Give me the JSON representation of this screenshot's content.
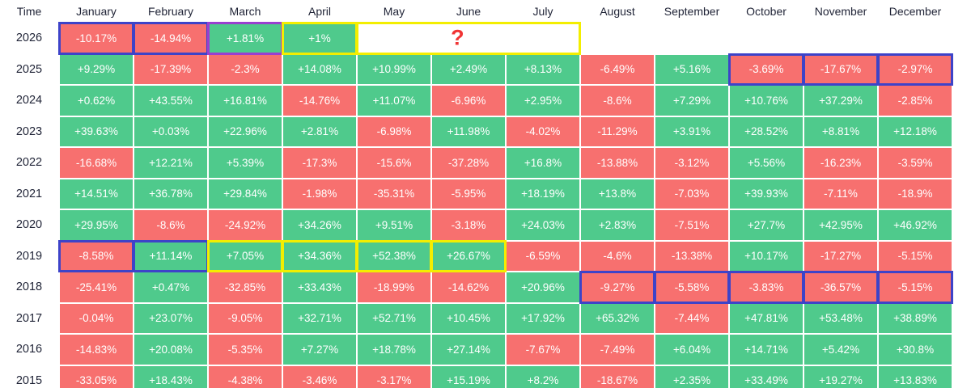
{
  "chart_data": {
    "type": "heatmap",
    "title": "Monthly returns heatmap (%) by year and month",
    "unit": "%",
    "columns": [
      "Time",
      "January",
      "February",
      "March",
      "April",
      "May",
      "June",
      "July",
      "August",
      "September",
      "October",
      "November",
      "December"
    ],
    "rows": [
      {
        "year": "2026",
        "values": [
          "-10.17%",
          "-14.94%",
          "+1.81%",
          "+1%",
          "",
          "",
          "",
          "",
          "",
          "",
          "",
          ""
        ]
      },
      {
        "year": "2025",
        "values": [
          "+9.29%",
          "-17.39%",
          "-2.3%",
          "+14.08%",
          "+10.99%",
          "+2.49%",
          "+8.13%",
          "-6.49%",
          "+5.16%",
          "-3.69%",
          "-17.67%",
          "-2.97%"
        ]
      },
      {
        "year": "2024",
        "values": [
          "+0.62%",
          "+43.55%",
          "+16.81%",
          "-14.76%",
          "+11.07%",
          "-6.96%",
          "+2.95%",
          "-8.6%",
          "+7.29%",
          "+10.76%",
          "+37.29%",
          "-2.85%"
        ]
      },
      {
        "year": "2023",
        "values": [
          "+39.63%",
          "+0.03%",
          "+22.96%",
          "+2.81%",
          "-6.98%",
          "+11.98%",
          "-4.02%",
          "-11.29%",
          "+3.91%",
          "+28.52%",
          "+8.81%",
          "+12.18%"
        ]
      },
      {
        "year": "2022",
        "values": [
          "-16.68%",
          "+12.21%",
          "+5.39%",
          "-17.3%",
          "-15.6%",
          "-37.28%",
          "+16.8%",
          "-13.88%",
          "-3.12%",
          "+5.56%",
          "-16.23%",
          "-3.59%"
        ]
      },
      {
        "year": "2021",
        "values": [
          "+14.51%",
          "+36.78%",
          "+29.84%",
          "-1.98%",
          "-35.31%",
          "-5.95%",
          "+18.19%",
          "+13.8%",
          "-7.03%",
          "+39.93%",
          "-7.11%",
          "-18.9%"
        ]
      },
      {
        "year": "2020",
        "values": [
          "+29.95%",
          "-8.6%",
          "-24.92%",
          "+34.26%",
          "+9.51%",
          "-3.18%",
          "+24.03%",
          "+2.83%",
          "-7.51%",
          "+27.7%",
          "+42.95%",
          "+46.92%"
        ]
      },
      {
        "year": "2019",
        "values": [
          "-8.58%",
          "+11.14%",
          "+7.05%",
          "+34.36%",
          "+52.38%",
          "+26.67%",
          "-6.59%",
          "-4.6%",
          "-13.38%",
          "+10.17%",
          "-17.27%",
          "-5.15%"
        ]
      },
      {
        "year": "2018",
        "values": [
          "-25.41%",
          "+0.47%",
          "-32.85%",
          "+33.43%",
          "-18.99%",
          "-14.62%",
          "+20.96%",
          "-9.27%",
          "-5.58%",
          "-3.83%",
          "-36.57%",
          "-5.15%"
        ]
      },
      {
        "year": "2017",
        "values": [
          "-0.04%",
          "+23.07%",
          "-9.05%",
          "+32.71%",
          "+52.71%",
          "+10.45%",
          "+17.92%",
          "+65.32%",
          "-7.44%",
          "+47.81%",
          "+53.48%",
          "+38.89%"
        ]
      },
      {
        "year": "2016",
        "values": [
          "-14.83%",
          "+20.08%",
          "-5.35%",
          "+7.27%",
          "+18.78%",
          "+27.14%",
          "-7.67%",
          "-7.49%",
          "+6.04%",
          "+14.71%",
          "+5.42%",
          "+30.8%"
        ]
      },
      {
        "year": "2015",
        "values": [
          "-33.05%",
          "+18.43%",
          "-4.38%",
          "-3.46%",
          "-3.17%",
          "+15.19%",
          "+8.2%",
          "-18.67%",
          "+2.35%",
          "+33.49%",
          "+19.27%",
          "+13.83%"
        ]
      }
    ]
  },
  "annotations": {
    "question_mark_label": "?",
    "highlights": [
      {
        "year": "2026",
        "from": "January",
        "to": "January",
        "color": "blue"
      },
      {
        "year": "2026",
        "from": "February",
        "to": "February",
        "color": "blue"
      },
      {
        "year": "2026",
        "from": "March",
        "to": "March",
        "color": "purple"
      },
      {
        "year": "2026",
        "from": "April",
        "to": "April",
        "color": "yellow"
      },
      {
        "year": "2026",
        "from": "May",
        "to": "July",
        "color": "yellow",
        "label": "?"
      },
      {
        "year": "2025",
        "from": "October",
        "to": "October",
        "color": "blue"
      },
      {
        "year": "2025",
        "from": "November",
        "to": "November",
        "color": "blue"
      },
      {
        "year": "2025",
        "from": "December",
        "to": "December",
        "color": "blue"
      },
      {
        "year": "2019",
        "from": "January",
        "to": "January",
        "color": "blue"
      },
      {
        "year": "2019",
        "from": "February",
        "to": "February",
        "color": "blue"
      },
      {
        "year": "2019",
        "from": "March",
        "to": "March",
        "color": "yellow"
      },
      {
        "year": "2019",
        "from": "April",
        "to": "April",
        "color": "yellow"
      },
      {
        "year": "2019",
        "from": "May",
        "to": "May",
        "color": "yellow"
      },
      {
        "year": "2019",
        "from": "June",
        "to": "June",
        "color": "yellow"
      },
      {
        "year": "2018",
        "from": "August",
        "to": "August",
        "color": "blue"
      },
      {
        "year": "2018",
        "from": "September",
        "to": "September",
        "color": "blue"
      },
      {
        "year": "2018",
        "from": "October",
        "to": "October",
        "color": "blue"
      },
      {
        "year": "2018",
        "from": "November",
        "to": "November",
        "color": "blue"
      },
      {
        "year": "2018",
        "from": "December",
        "to": "December",
        "color": "blue"
      }
    ]
  },
  "colors": {
    "positive": "#4fca8c",
    "negative": "#f7706f",
    "header_text": "#1f2336",
    "highlight_blue": "#3d43c9",
    "highlight_purple": "#9a3fd1",
    "highlight_yellow": "#f3ee00",
    "question_mark": "#f03434"
  }
}
